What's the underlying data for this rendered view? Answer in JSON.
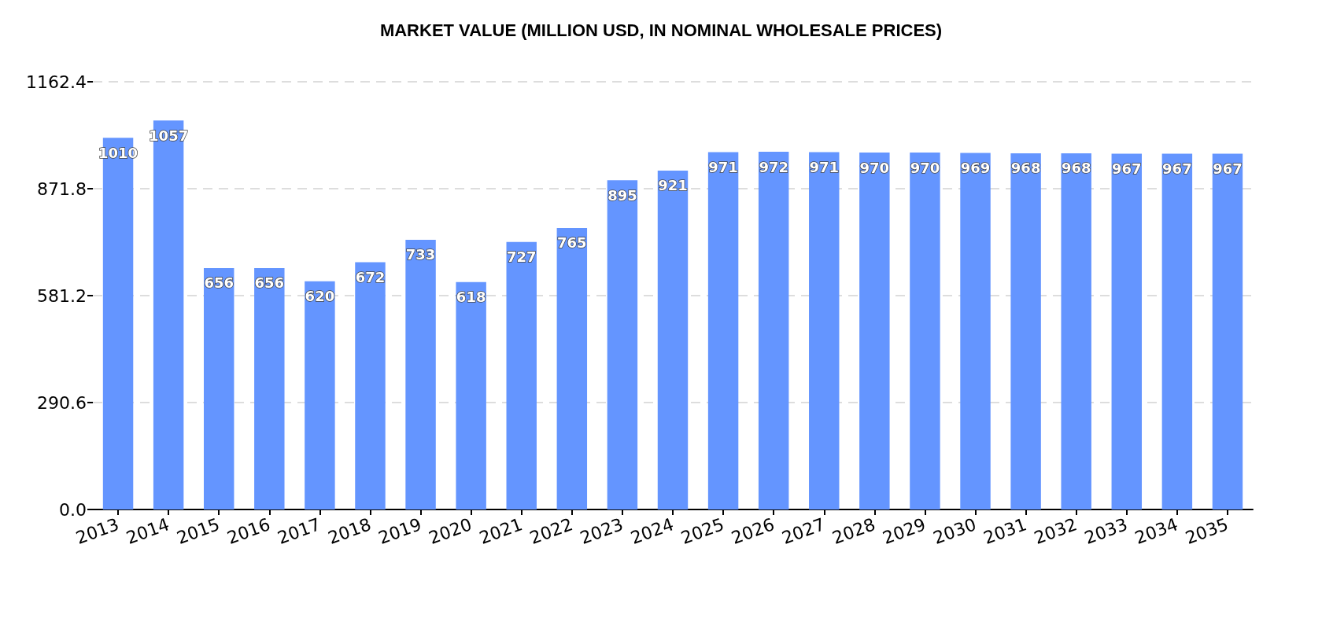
{
  "chart_data": {
    "type": "bar",
    "title": "MARKET VALUE (MILLION USD, IN NOMINAL WHOLESALE PRICES)",
    "categories": [
      "2013",
      "2014",
      "2015",
      "2016",
      "2017",
      "2018",
      "2019",
      "2020",
      "2021",
      "2022",
      "2023",
      "2024",
      "2025",
      "2026",
      "2027",
      "2028",
      "2029",
      "2030",
      "2031",
      "2032",
      "2033",
      "2034",
      "2035"
    ],
    "values": [
      1010,
      1057,
      656,
      656,
      620,
      672,
      733,
      618,
      727,
      765,
      895,
      921,
      971,
      972,
      971,
      970,
      970,
      969,
      968,
      968,
      967,
      967,
      967
    ],
    "color": "#6495ff",
    "ylim": [
      0,
      1162.4
    ],
    "yticks": [
      {
        "value": 0,
        "label": "0.0"
      },
      290.6,
      581.2,
      871.8,
      1162.4
    ],
    "grid": "y",
    "data_labels": true
  }
}
